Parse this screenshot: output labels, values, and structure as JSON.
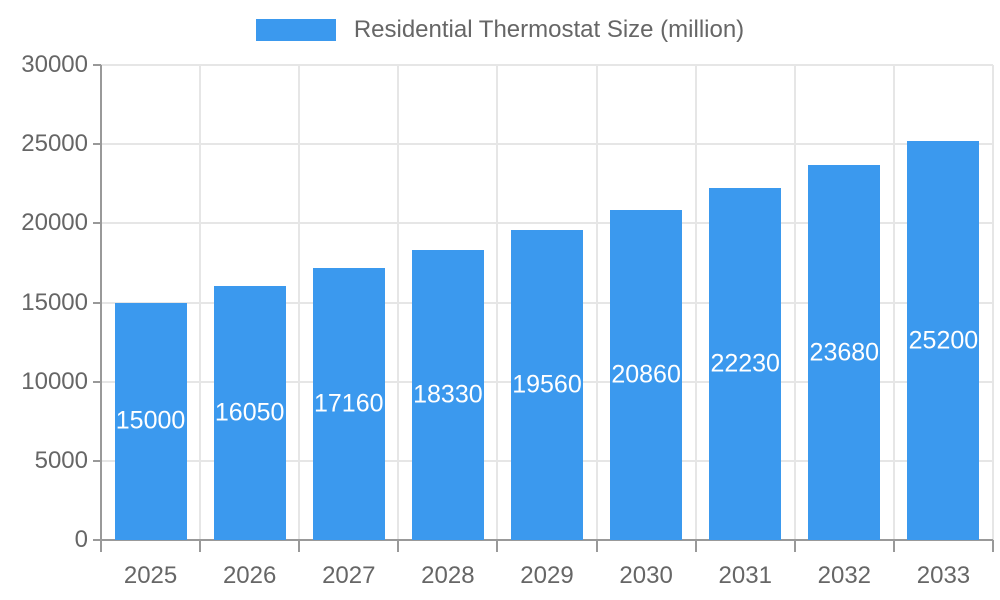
{
  "colors": {
    "bar": "#3B99EE",
    "grid": "#E6E6E6",
    "axis": "#999999",
    "tick_text": "#666666",
    "value_label_text": "#FFFFFF",
    "background": "#FFFFFF"
  },
  "legend": {
    "position": "top",
    "label": "Residential Thermostat Size (million)"
  },
  "chart_data": {
    "type": "bar",
    "title": "Residential Thermostat Size (million)",
    "categories": [
      "2025",
      "2026",
      "2027",
      "2028",
      "2029",
      "2030",
      "2031",
      "2032",
      "2033"
    ],
    "values": [
      15000,
      16050,
      17160,
      18330,
      19560,
      20860,
      22230,
      23680,
      25200
    ],
    "series_name": "Residential Thermostat Size (million)",
    "xlabel": "",
    "ylabel": "",
    "ylim": [
      0,
      30000
    ],
    "yticks": [
      0,
      5000,
      10000,
      15000,
      20000,
      25000,
      30000
    ],
    "grid": true,
    "legend_position": "top-center",
    "value_labels": "inside-center"
  }
}
